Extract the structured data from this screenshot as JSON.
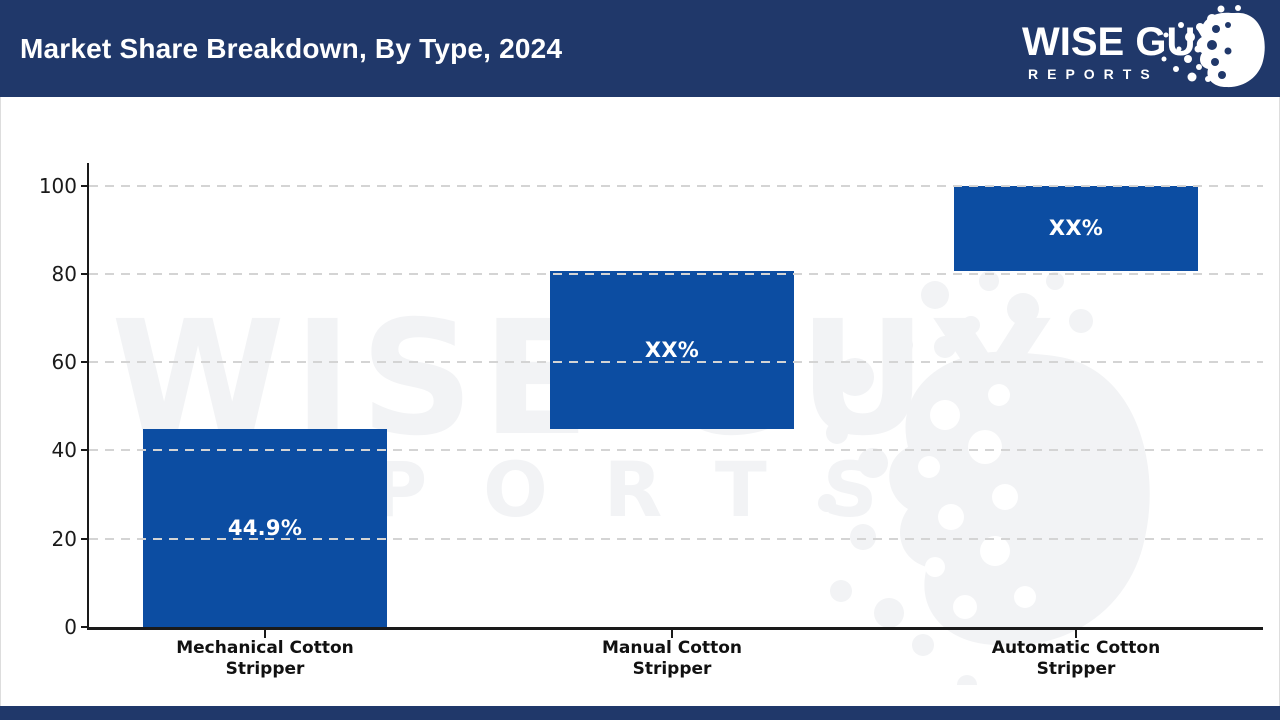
{
  "header": {
    "title": "Market Share Breakdown, By Type, 2024",
    "logo": {
      "line1": "WISE GUY",
      "line2": "R E P O R T S"
    }
  },
  "watermark": {
    "line1": "WISE GUY",
    "line2": "REPORTS"
  },
  "colors": {
    "header_bg": "#20386A",
    "bar_color": "#0C4DA2",
    "bar_label_color": "#FFFFFF",
    "gridline_color": "#D4D4D4",
    "watermark_color": "#F2F3F5",
    "axis_color": "#1a1a1a"
  },
  "chart_data": {
    "type": "bar",
    "subtype": "waterfall",
    "title": "Market Share Breakdown, By Type, 2024",
    "categories": [
      "Mechanical Cotton Stripper",
      "Manual Cotton Stripper",
      "Automatic Cotton Stripper"
    ],
    "segments": [
      {
        "category": "Mechanical Cotton Stripper",
        "start": 0,
        "end": 44.9,
        "label": "44.9%"
      },
      {
        "category": "Manual Cotton Stripper",
        "start": 44.9,
        "end": 80.6,
        "label": "XX%"
      },
      {
        "category": "Automatic Cotton Stripper",
        "start": 80.6,
        "end": 100,
        "label": "XX%"
      }
    ],
    "yticks": [
      0,
      20,
      40,
      60,
      80,
      100
    ],
    "ylim": [
      0,
      100
    ],
    "grid": "dashed-horizontal",
    "legend": "none",
    "bar_color": "#0C4DA2",
    "label_color": "#FFFFFF"
  }
}
